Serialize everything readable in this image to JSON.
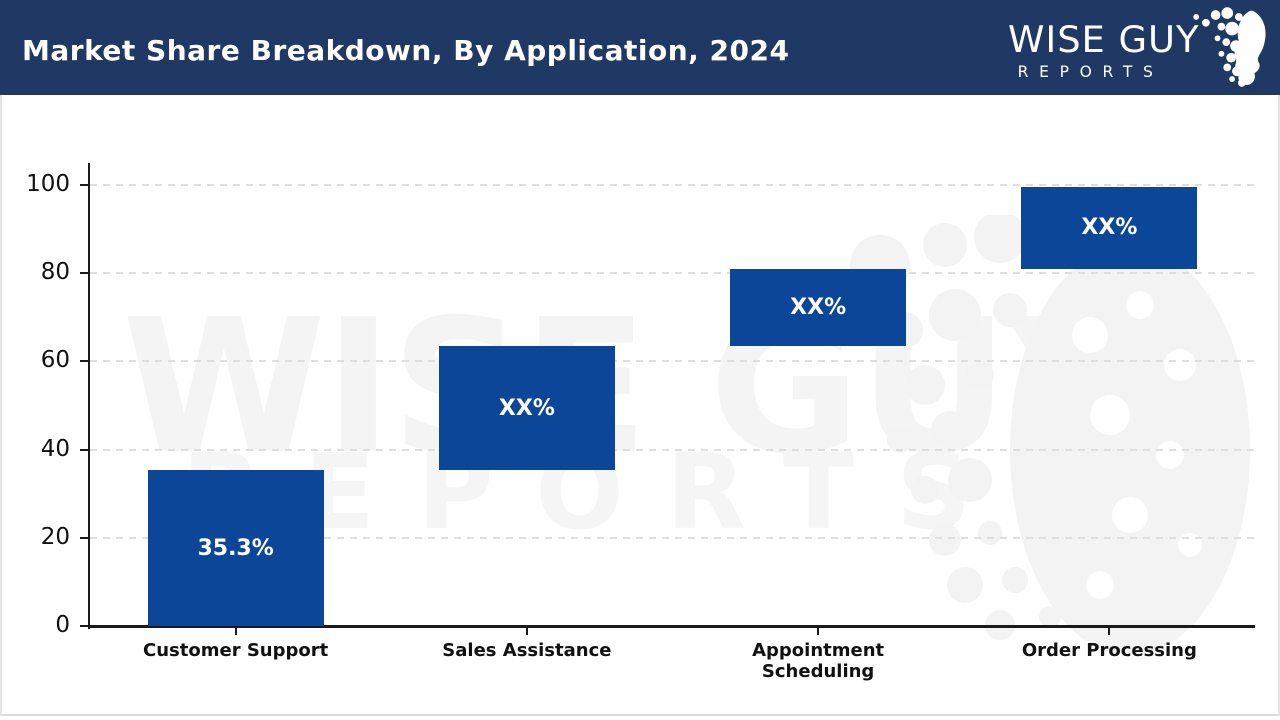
{
  "header": {
    "title": "Market Share Breakdown, By Application, 2024",
    "logo": {
      "line1": "WISE GUY",
      "line2": "REPORTS"
    }
  },
  "watermark": {
    "line1": "WISE GUY",
    "line2": "REPORTS"
  },
  "colors": {
    "header_bg": "#1f3864",
    "bar": "#0b4699",
    "bar_value_label": "#ffffff",
    "axis": "#1a1a1a",
    "gridline": "#dedede",
    "watermark": "#f4f4f4"
  },
  "chart_data": {
    "type": "bar",
    "subtype": "waterfall",
    "title": "Market Share Breakdown, By Application, 2024",
    "xlabel": "",
    "ylabel": "",
    "ylim": [
      0,
      105
    ],
    "yticks": [
      0,
      20,
      40,
      60,
      80,
      100
    ],
    "grid": "horizontal-dashed",
    "legend": "none",
    "categories": [
      "Customer Support",
      "Sales Assistance",
      "Appointment Scheduling",
      "Order Processing"
    ],
    "bars": [
      {
        "category": "Customer Support",
        "start": 0,
        "end": 35.3,
        "label": "35.3%"
      },
      {
        "category": "Sales Assistance",
        "start": 35.3,
        "end": 63.5,
        "label": "XX%"
      },
      {
        "category": "Appointment Scheduling",
        "start": 63.5,
        "end": 81.0,
        "label": "XX%"
      },
      {
        "category": "Order Processing",
        "start": 81.0,
        "end": 99.5,
        "label": "XX%"
      }
    ]
  }
}
